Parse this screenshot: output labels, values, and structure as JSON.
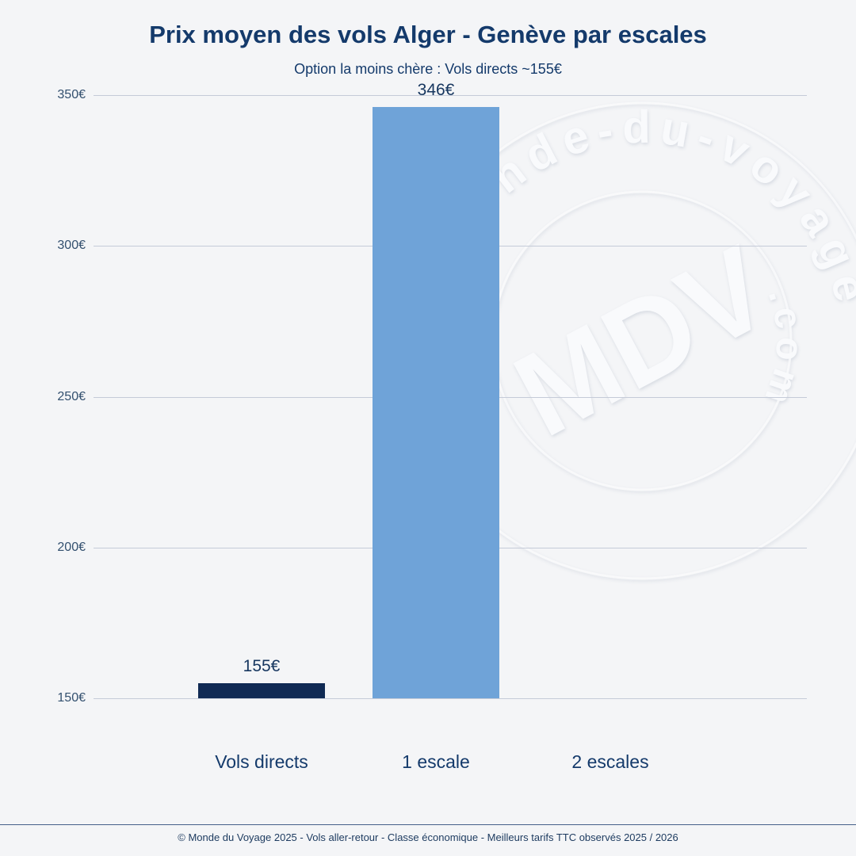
{
  "page": {
    "background": "#f4f5f7"
  },
  "chart_data": {
    "type": "bar",
    "title": "Prix moyen des vols Alger - Genève par escales",
    "subtitle": "Option la moins chère : Vols directs ~155€",
    "categories": [
      "Vols directs",
      "1 escale",
      "2 escales"
    ],
    "values": [
      155,
      346,
      null
    ],
    "value_labels": [
      "155€",
      "346€",
      ""
    ],
    "bar_colors": [
      "#102a54",
      "#6fa3d8",
      "#6fa3d8"
    ],
    "xlabel": "",
    "ylabel": "",
    "ylim": [
      150,
      350
    ],
    "y_ticks": [
      150,
      200,
      250,
      300,
      350
    ],
    "y_tick_labels": [
      "150€",
      "200€",
      "250€",
      "300€",
      "350€"
    ],
    "grid": "horizontal",
    "legend": "none",
    "currency": "€"
  },
  "watermark": {
    "ring_text": "www.monde-du-voyage",
    "ring_text_tail": ".com",
    "center_text": "MDV"
  },
  "footer": {
    "text": "© Monde du Voyage 2025 - Vols aller-retour - Classe économique - Meilleurs tarifs TTC observés 2025 / 2026"
  }
}
